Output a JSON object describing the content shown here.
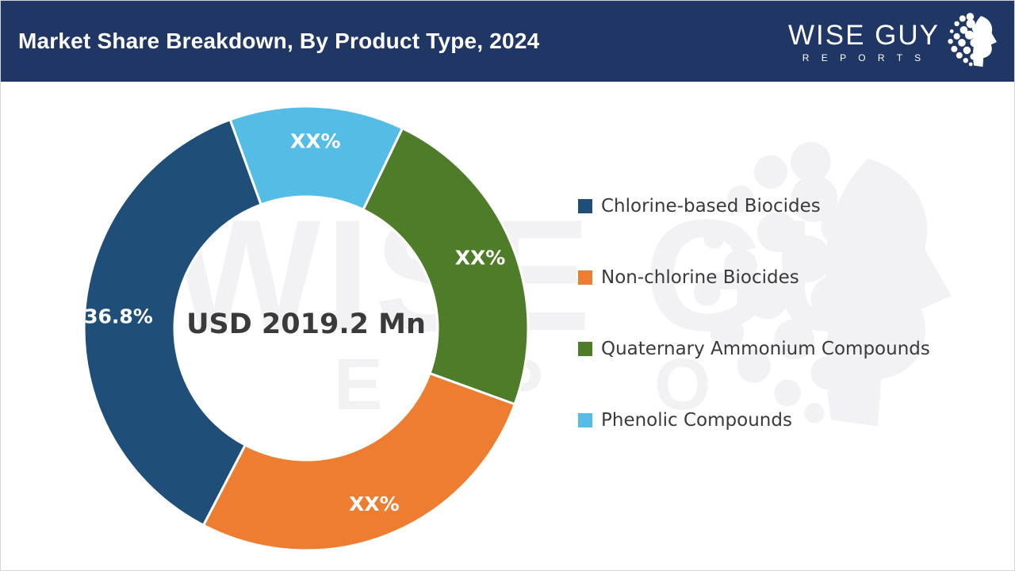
{
  "header": {
    "title": "Market Share Breakdown, By Product Type, 2024"
  },
  "logo": {
    "name": "WISE GUY",
    "subtitle": "R E P O R T S"
  },
  "watermark": {
    "line1": "WISE GU",
    "line2": "E P O"
  },
  "chart_data": {
    "type": "pie",
    "subtype": "donut",
    "title": "Market Share Breakdown, By Product Type, 2024",
    "center_label": "USD 2019.2 Mn",
    "start_angle_deg": 110,
    "direction": "counterclockwise",
    "legend_position": "right",
    "segments": [
      {
        "label": "Chlorine-based Biocides",
        "display_value": "36.8%",
        "value_pct": 36.8,
        "color": "#1f4e79"
      },
      {
        "label": "Non-chlorine Biocides",
        "display_value": "XX%",
        "value_pct": 27.1,
        "color": "#ed7d31"
      },
      {
        "label": "Quaternary Ammonium Compounds",
        "display_value": "XX%",
        "value_pct": 23.4,
        "color": "#4e7c28"
      },
      {
        "label": "Phenolic Compounds",
        "display_value": "XX%",
        "value_pct": 12.7,
        "color": "#55bde5"
      }
    ]
  }
}
